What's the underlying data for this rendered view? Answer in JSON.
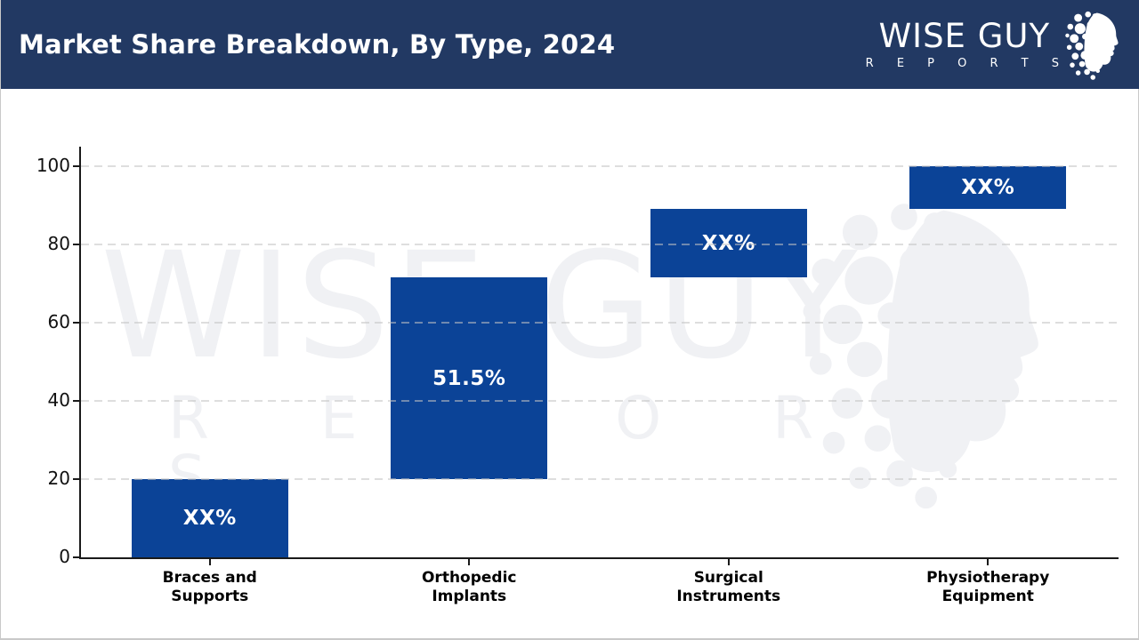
{
  "header": {
    "title": "Market Share Breakdown, By Type, 2024",
    "bg_color": "#223963",
    "logo": {
      "line1": "WISE GUY",
      "line2": "R E P O R T S"
    }
  },
  "watermark": {
    "line1": "WISE GUY",
    "line2": "R E P O R T S"
  },
  "chart_data": {
    "type": "bar",
    "variant": "floating-segment-waterfall",
    "title": "Market Share Breakdown, By Type, 2024",
    "categories": [
      "Braces and Supports",
      "Orthopedic Implants",
      "Surgical Instruments",
      "Physiotherapy Equipment"
    ],
    "category_lines": [
      [
        "Braces and",
        "Supports"
      ],
      [
        "Orthopedic",
        "Implants"
      ],
      [
        "Surgical",
        "Instruments"
      ],
      [
        "Physiotherapy",
        "Equipment"
      ]
    ],
    "segments": [
      {
        "category": "Braces and Supports",
        "start": 0,
        "end": 20,
        "label": "XX%"
      },
      {
        "category": "Orthopedic Implants",
        "start": 20,
        "end": 71.5,
        "label": "51.5%"
      },
      {
        "category": "Surgical Instruments",
        "start": 71.5,
        "end": 89,
        "label": "XX%"
      },
      {
        "category": "Physiotherapy Equipment",
        "start": 89,
        "end": 100,
        "label": "XX%"
      }
    ],
    "ylim": [
      0,
      100
    ],
    "yticks": [
      0,
      20,
      40,
      60,
      80,
      100
    ],
    "xlabel": "",
    "ylabel": "",
    "grid": "horizontal-dashed",
    "legend": "none",
    "bar_color": "#0b4397",
    "bar_label_color": "#ffffff",
    "axis_color": "#1a1a1a"
  }
}
